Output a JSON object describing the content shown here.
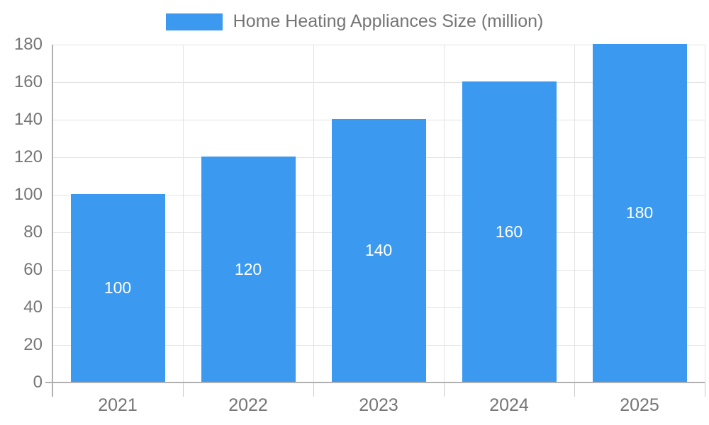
{
  "legend": {
    "label": "Home Heating Appliances Size (million)"
  },
  "chart_data": {
    "type": "bar",
    "title": "Home Heating Appliances Size (million)",
    "categories": [
      "2021",
      "2022",
      "2023",
      "2024",
      "2025"
    ],
    "values": [
      100,
      120,
      140,
      160,
      180
    ],
    "data_labels": [
      "100",
      "120",
      "140",
      "160",
      "180"
    ],
    "xlabel": "",
    "ylabel": "",
    "ylim": [
      0,
      180
    ],
    "ytick_step": 20,
    "yticks": [
      0,
      20,
      40,
      60,
      80,
      100,
      120,
      140,
      160,
      180
    ],
    "grid": true,
    "legend_position": "top"
  },
  "colors": {
    "bar": "#3b99f0",
    "bar_label": "#ffffff",
    "axis_text": "#757575",
    "gridline": "#e3e3e3",
    "axis_line": "#b0b0b0",
    "tick": "#c9c9c9",
    "background": "#ffffff"
  }
}
